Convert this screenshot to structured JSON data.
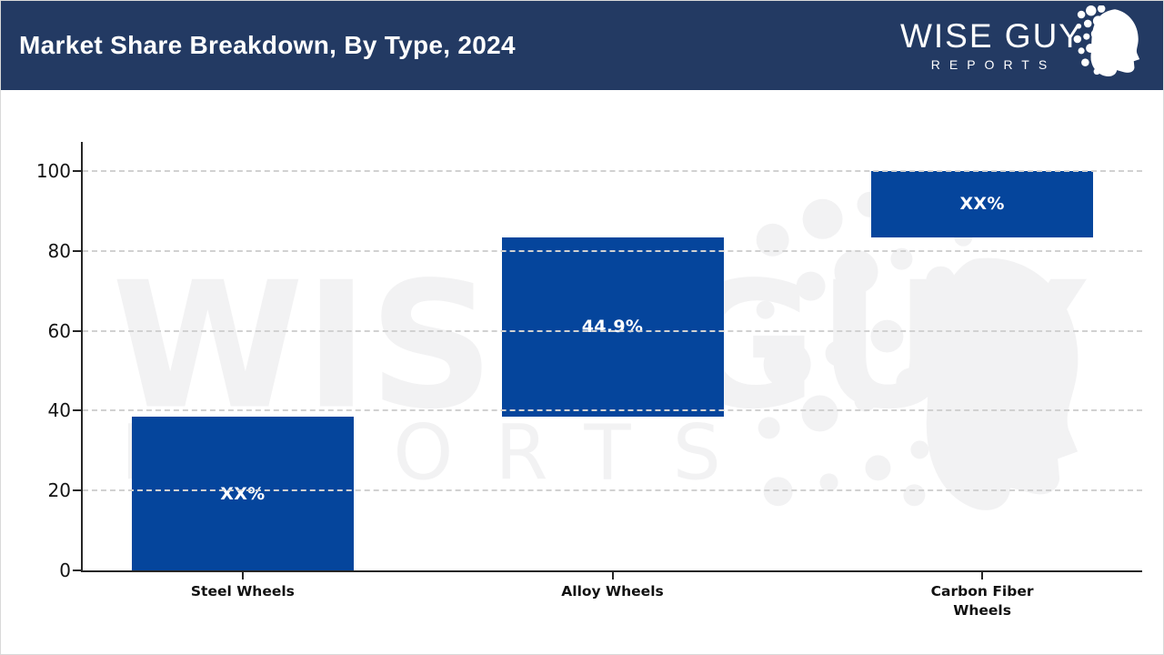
{
  "page": {
    "background": "#ffffff",
    "border_color": "#d9d9d9"
  },
  "header": {
    "title": "Market Share Breakdown, By Type, 2024",
    "background": "#233a63",
    "logo": {
      "line1": "WISE GUY",
      "line2": "REPORTS",
      "head_icon": "dotted-head-profile"
    }
  },
  "watermark": {
    "line1": "WISE GUY",
    "line2": "REPORTS",
    "color": "#f2f2f3"
  },
  "chart_data": {
    "type": "bar",
    "subtype": "waterfall-stacked-segments",
    "title": "Market Share Breakdown, By Type, 2024",
    "categories": [
      "Steel Wheels",
      "Alloy Wheels",
      "Carbon Fiber Wheels"
    ],
    "segments": [
      {
        "category": "Steel Wheels",
        "start": 0,
        "end": 38.5,
        "label": "XX%"
      },
      {
        "category": "Alloy Wheels",
        "start": 38.5,
        "end": 83.4,
        "label": "44.9%"
      },
      {
        "category": "Carbon Fiber Wheels",
        "start": 83.4,
        "end": 100,
        "label": "XX%"
      }
    ],
    "xlabel": "",
    "ylabel": "",
    "ylim": [
      0,
      100
    ],
    "yticks": [
      0,
      20,
      40,
      60,
      80,
      100
    ],
    "bar_color": "#05459c",
    "bar_label_color": "#ffffff",
    "grid": {
      "orientation": "horizontal",
      "style": "dashed",
      "color": "#d1d1d1",
      "above_bars": true
    },
    "axis_color": "#262626",
    "legend": "none"
  }
}
